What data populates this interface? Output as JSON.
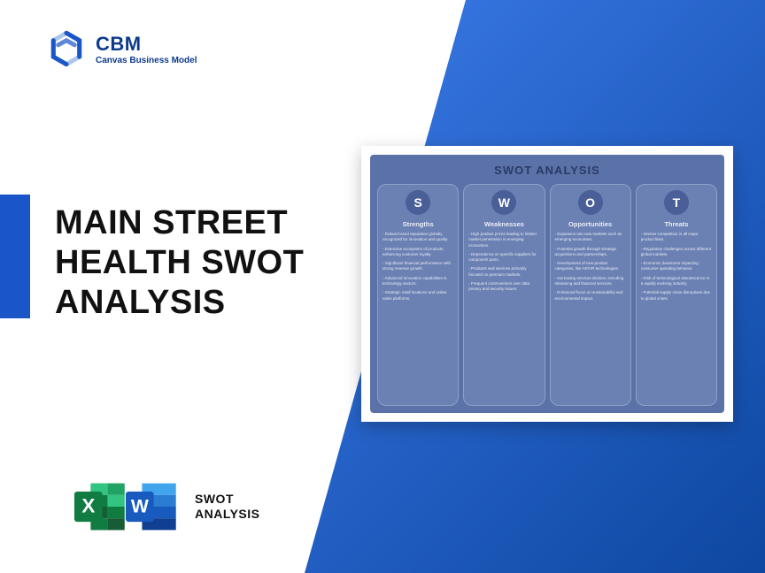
{
  "logo": {
    "title": "CBM",
    "subtitle": "Canvas Business Model",
    "mark_color": "#1a56c7"
  },
  "main_title": "MAIN STREET HEALTH SWOT ANALYSIS",
  "accent_color": "#1a56c7",
  "wedge_gradient": {
    "from": "#3b7ae8",
    "to": "#0d47a1"
  },
  "footer": {
    "label_line1": "SWOT",
    "label_line2": "ANALYSIS",
    "icons": [
      {
        "name": "excel",
        "letter": "X",
        "bg": "#1d8f4a",
        "panel": "#33c481"
      },
      {
        "name": "word",
        "letter": "W",
        "bg": "#1b5cbe",
        "panel": "#4a9ae8"
      }
    ]
  },
  "swot_card": {
    "title": "SWOT ANALYSIS",
    "title_color": "#2a3a66",
    "card_bg": "#5b72a8",
    "col_bg": "#6b80b3",
    "col_border": "#8fa0c8",
    "circle_bg": "#4a5f97",
    "text_color": "#e9edf6",
    "columns": [
      {
        "letter": "S",
        "heading": "Strengths",
        "items": [
          "Robust brand reputation globally recognized for innovation and quality.",
          "Extensive ecosystem of products enhancing customer loyalty.",
          "Significant financial performance with strong revenue growth.",
          "Advanced innovation capabilities in technology sectors.",
          "Strategic retail locations and online sales platforms."
        ]
      },
      {
        "letter": "W",
        "heading": "Weaknesses",
        "items": [
          "High product prices leading to limited market penetration in emerging economies.",
          "Dependence on specific suppliers for component parts.",
          "Products and services primarily focused on premium markets.",
          "Frequent controversies over data privacy and security issues."
        ]
      },
      {
        "letter": "O",
        "heading": "Opportunities",
        "items": [
          "Expansion into new markets such as emerging economies.",
          "Potential growth through strategic acquisitions and partnerships.",
          "Development of new product categories, like AR/VR technologies.",
          "Increasing services division, including streaming and financial services.",
          "Enhanced focus on sustainability and environmental impact."
        ]
      },
      {
        "letter": "T",
        "heading": "Threats",
        "items": [
          "Intense competition in all major product lines.",
          "Regulatory challenges across different global markets.",
          "Economic downturns impacting consumer spending behavior.",
          "Risk of technological obsolescence in a rapidly evolving industry.",
          "Potential supply chain disruptions due to global crises."
        ]
      }
    ]
  }
}
